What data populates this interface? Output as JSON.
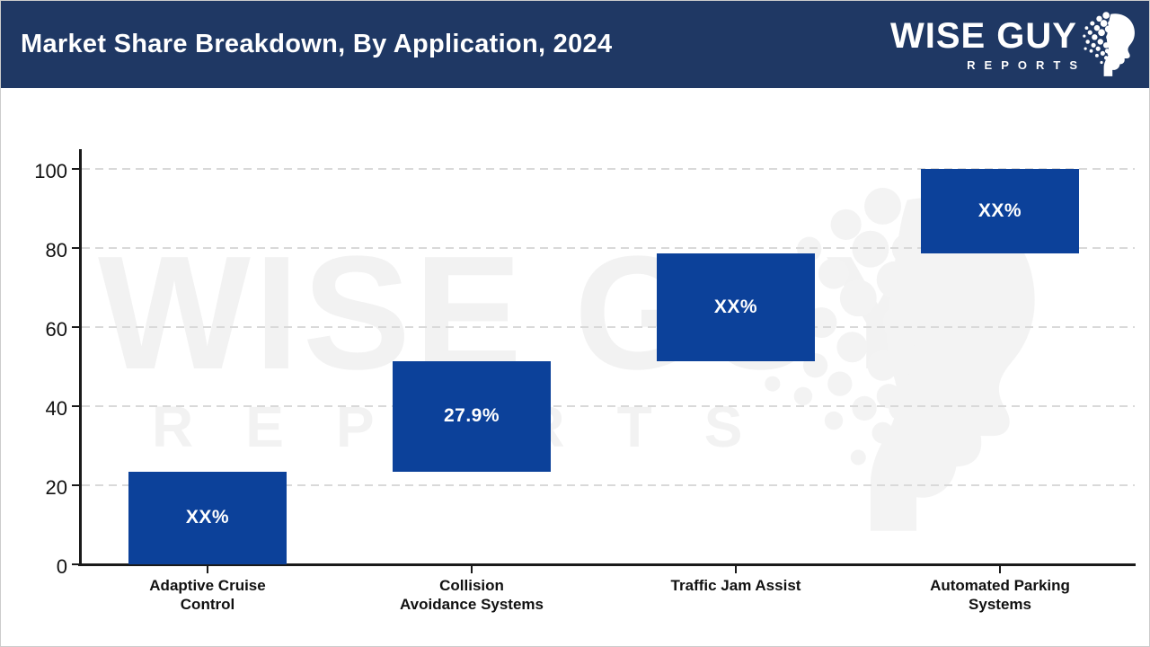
{
  "header": {
    "title": "Market Share Breakdown, By Application, 2024"
  },
  "logo": {
    "name_line": "WISE GUY",
    "sub_line": "REPORTS"
  },
  "watermark": {
    "name_line": "WISE GUY",
    "sub_line": "REPORTS"
  },
  "colors": {
    "header_bg": "#1F3864",
    "bar": "#0C419A",
    "bar_label": "#FFFFFF",
    "gridline": "#D9D9D9",
    "axis": "#1A1A1A",
    "tick_text": "#111111",
    "watermark": "#F2F2F2"
  },
  "chart_data": {
    "type": "bar",
    "subtype": "waterfall-segments",
    "title": "Market Share Breakdown, By Application, 2024",
    "categories": [
      "Adaptive Cruise Control",
      "Collision Avoidance Systems",
      "Traffic Jam Assist",
      "Automated Parking Systems"
    ],
    "segments": [
      {
        "category": "Adaptive Cruise Control",
        "display": [
          "Adaptive Cruise",
          "Control"
        ],
        "start": 0,
        "end": 23.5,
        "value": 23.5,
        "label": "XX%"
      },
      {
        "category": "Collision Avoidance Systems",
        "display": [
          "Collision",
          "Avoidance Systems"
        ],
        "start": 23.5,
        "end": 51.4,
        "value": 27.9,
        "label": "27.9%"
      },
      {
        "category": "Traffic Jam Assist",
        "display": [
          "Traffic Jam Assist"
        ],
        "start": 51.4,
        "end": 78.6,
        "value": 27.2,
        "label": "XX%"
      },
      {
        "category": "Automated Parking Systems",
        "display": [
          "Automated Parking",
          "Systems"
        ],
        "start": 78.6,
        "end": 100,
        "value": 21.4,
        "label": "XX%"
      }
    ],
    "ylim": [
      0,
      100
    ],
    "yticks": [
      0,
      20,
      40,
      60,
      80,
      100
    ],
    "xlabel": "",
    "ylabel": "",
    "grid": "horizontal-dashed",
    "legend": "none",
    "bar_label_color": "#FFFFFF",
    "bar_color": "#0C419A"
  }
}
